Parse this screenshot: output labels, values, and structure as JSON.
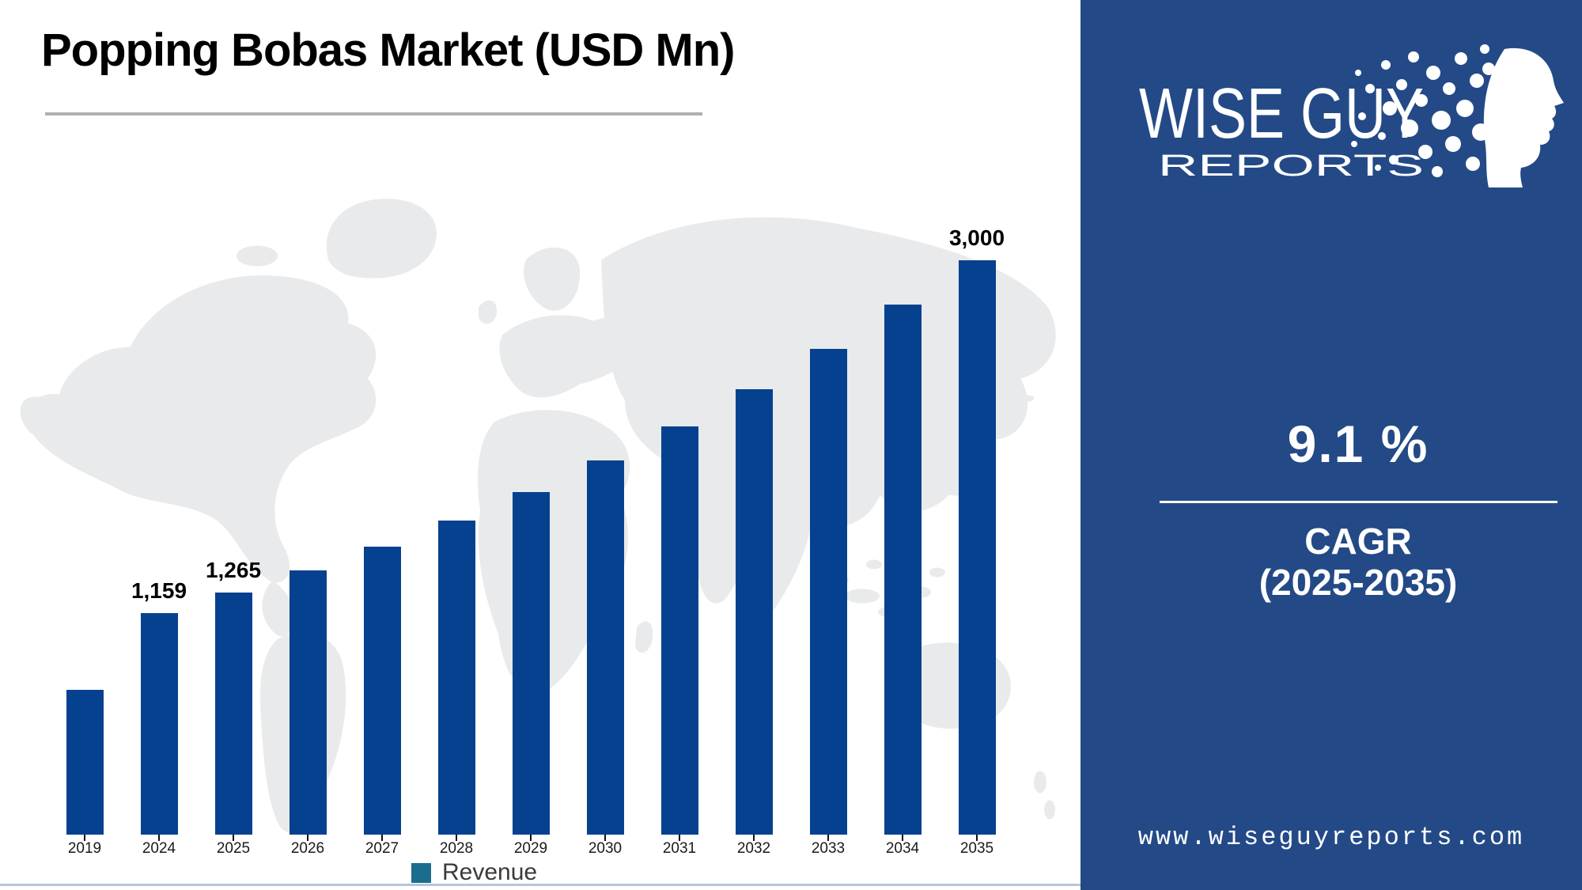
{
  "title": "Popping Bobas Market (USD Mn)",
  "chart_data": {
    "type": "bar",
    "title": "Popping Bobas Market (USD Mn)",
    "categories": [
      "2019",
      "2024",
      "2025",
      "2026",
      "2027",
      "2028",
      "2029",
      "2030",
      "2031",
      "2032",
      "2033",
      "2034",
      "2035"
    ],
    "values": [
      756,
      1159,
      1265,
      1380,
      1506,
      1643,
      1792,
      1955,
      2133,
      2327,
      2539,
      2770,
      3000
    ],
    "series": [
      {
        "name": "Revenue",
        "color": "#05418f"
      }
    ],
    "data_labels": {
      "2024": "1,159",
      "2025": "1,265",
      "2035": "3,000"
    },
    "xlabel": "",
    "ylabel": "",
    "ylim": [
      0,
      3150
    ],
    "grid": false,
    "legend_position": "bottom"
  },
  "legend": {
    "label": "Revenue",
    "swatch_color": "#1b6d8e"
  },
  "map": {
    "name": "world-map-background",
    "color": "#e8eaec"
  },
  "sidebar": {
    "background_color": "#234a87",
    "logo": {
      "line1": "WISE GUY",
      "line2": "REPORTS"
    },
    "cagr_value": "9.1 %",
    "cagr_label_line1": "CAGR",
    "cagr_label_line2": "(2025-2035)",
    "website": "www.wiseguyreports.com"
  }
}
